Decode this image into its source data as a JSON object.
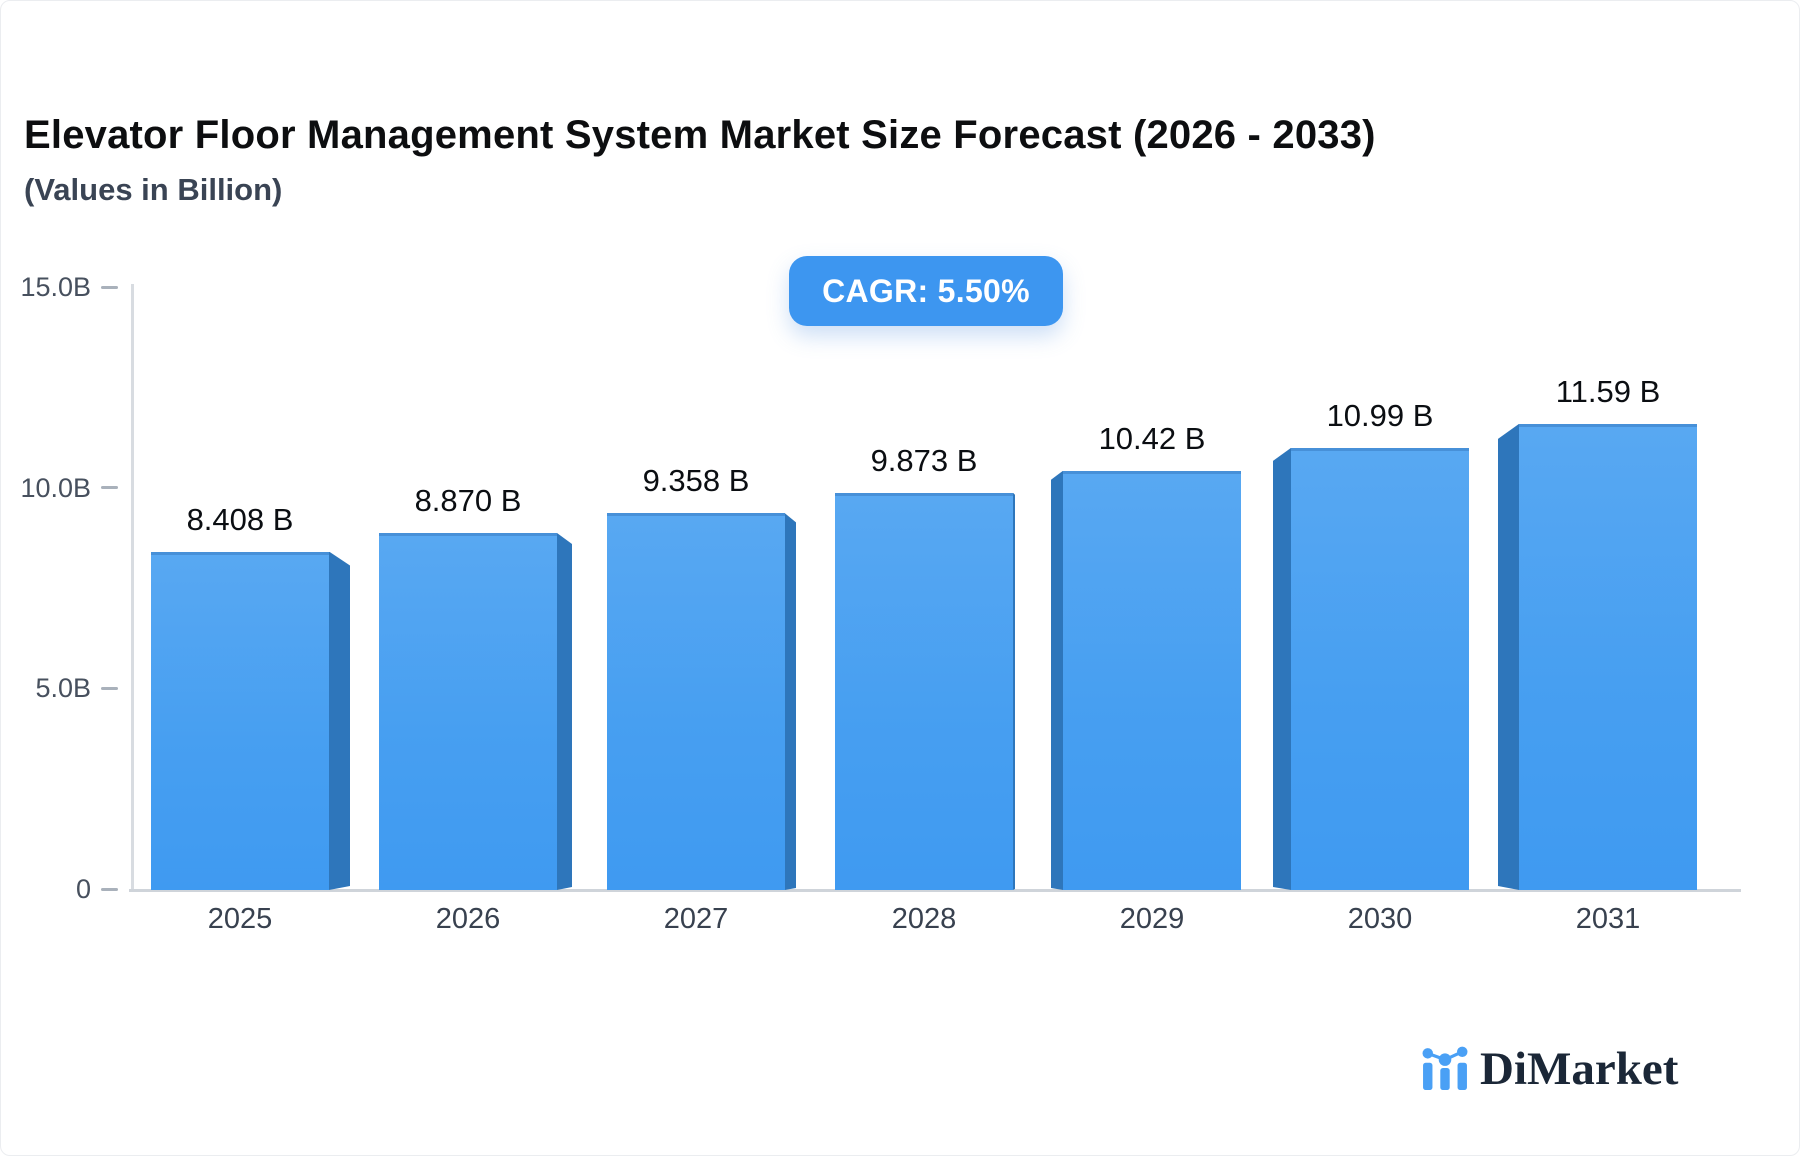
{
  "title": "Elevator Floor Management System Market Size Forecast (2026 - 2033)",
  "subtitle": "(Values in Billion)",
  "badge": {
    "label": "CAGR: 5.50%",
    "bg_color": "#3d96f0"
  },
  "chart_data": {
    "type": "bar",
    "categories": [
      "2025",
      "2026",
      "2027",
      "2028",
      "2029",
      "2030",
      "2031"
    ],
    "values": [
      8.408,
      8.87,
      9.358,
      9.873,
      10.42,
      10.99,
      11.59
    ],
    "value_labels": [
      "8.408 B",
      "8.870 B",
      "9.358 B",
      "9.873 B",
      "10.42 B",
      "10.99 B",
      "11.59 B"
    ],
    "unit": "Billion",
    "y_ticks": [
      {
        "label": "15.0B",
        "value": 15
      },
      {
        "label": "10.0B",
        "value": 10
      },
      {
        "label": "5.0B",
        "value": 5
      },
      {
        "label": "0",
        "value": 0
      }
    ],
    "ylim": [
      0,
      15
    ],
    "grid": false,
    "legend": false,
    "bar_color_top": "#58a8f2",
    "bar_color_bottom": "#3f9af1",
    "bar_side_color": "#2e76bb",
    "style": "3d-perspective-center"
  },
  "logo": {
    "icon": "dimarket-bar-chart-icon",
    "icon_color": "#4aa0f5",
    "text": "DiMarket",
    "text_color": "#1b2737"
  }
}
